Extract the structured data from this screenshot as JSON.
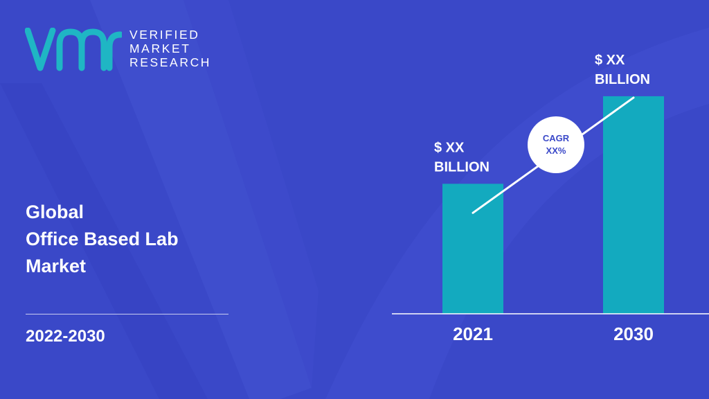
{
  "brand": {
    "line1": "VERIFIED",
    "line2": "MARKET",
    "line3": "RESEARCH"
  },
  "report": {
    "title_line1": "Global",
    "title_line2": "Office Based Lab",
    "title_line3": "Market",
    "period": "2022-2030"
  },
  "colors": {
    "background": "#3a48c8",
    "bar": "#13aabf",
    "accent_light": "#4453d2",
    "text": "#ffffff"
  },
  "chart_data": {
    "type": "bar",
    "categories": [
      "2021",
      "2030"
    ],
    "values": [
      49,
      82
    ],
    "value_labels": [
      [
        "$ XX",
        "BILLION"
      ],
      [
        "$ XX",
        "BILLION"
      ]
    ],
    "ylim": [
      0,
      100
    ],
    "cagr": {
      "line1": "CAGR",
      "line2": "XX%"
    },
    "grid": false,
    "legend": "none"
  }
}
